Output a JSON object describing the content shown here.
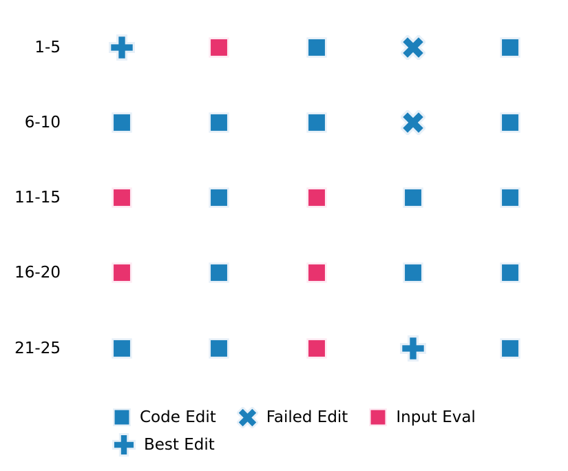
{
  "chart_data": {
    "type": "scatter",
    "title": "",
    "xlabel": "",
    "ylabel": "",
    "grid_lines": false,
    "legend_position": "bottom",
    "categories": [
      "1-5",
      "6-10",
      "11-15",
      "16-20",
      "21-25"
    ],
    "marker_types": {
      "code_edit": {
        "label": "Code Edit",
        "shape": "square",
        "color": "#1c80bb",
        "halo": "#e7f0f8"
      },
      "failed_edit": {
        "label": "Failed Edit",
        "shape": "x",
        "color": "#1c80bb",
        "halo": "#e7f0f8"
      },
      "input_eval": {
        "label": "Input Eval",
        "shape": "square",
        "color": "#e8336e",
        "halo": "#fdeaf2"
      },
      "best_edit": {
        "label": "Best Edit",
        "shape": "plus",
        "color": "#1c80bb",
        "halo": "#e7f0f8"
      }
    },
    "grid": [
      [
        "best_edit",
        "input_eval",
        "code_edit",
        "failed_edit",
        "code_edit"
      ],
      [
        "code_edit",
        "code_edit",
        "code_edit",
        "failed_edit",
        "code_edit"
      ],
      [
        "input_eval",
        "code_edit",
        "input_eval",
        "code_edit",
        "code_edit"
      ],
      [
        "input_eval",
        "code_edit",
        "input_eval",
        "code_edit",
        "code_edit"
      ],
      [
        "code_edit",
        "code_edit",
        "input_eval",
        "best_edit",
        "code_edit"
      ]
    ],
    "legend_rows": [
      [
        "code_edit",
        "failed_edit",
        "input_eval"
      ],
      [
        "best_edit"
      ]
    ],
    "colors": {
      "blue": "#1c80bb",
      "pink": "#e8336e",
      "text": "#000000",
      "background": "#ffffff"
    }
  }
}
